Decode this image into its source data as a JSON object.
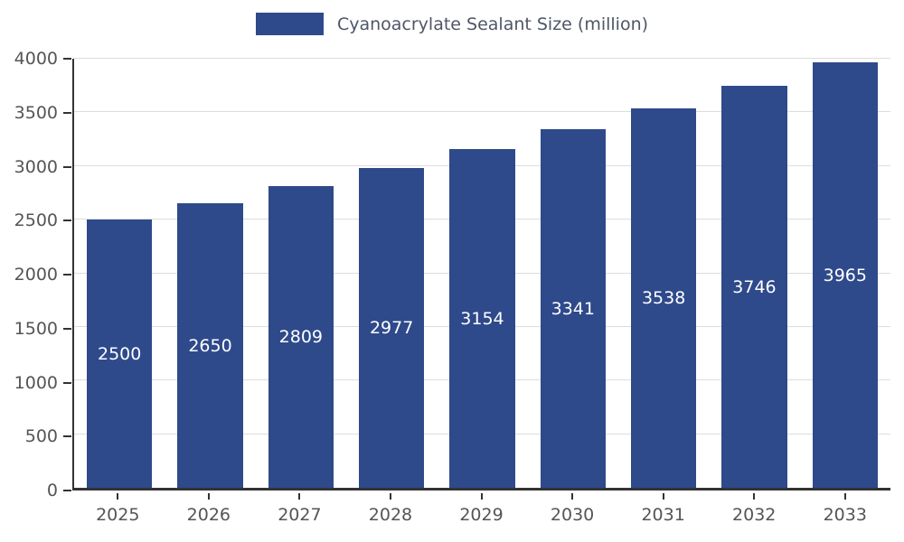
{
  "legend": {
    "label": "Cyanoacrylate Sealant Size (million)"
  },
  "colors": {
    "bar": "#2e4a8b",
    "grid": "#dddddd",
    "axis": "#333333",
    "tick_text": "#555555",
    "legend_text": "#4e5666",
    "value_label": "#ffffff"
  },
  "chart_data": {
    "type": "bar",
    "title": "Cyanoacrylate Sealant Size (million)",
    "categories": [
      "2025",
      "2026",
      "2027",
      "2028",
      "2029",
      "2030",
      "2031",
      "2032",
      "2033"
    ],
    "values": [
      2500,
      2650,
      2809,
      2977,
      3154,
      3341,
      3538,
      3746,
      3965
    ],
    "xlabel": "",
    "ylabel": "",
    "ylim": [
      0,
      4000
    ],
    "yticks": [
      0,
      500,
      1000,
      1500,
      2000,
      2500,
      3000,
      3500,
      4000
    ],
    "grid": true,
    "legend_position": "top",
    "value_labels": "inside-center"
  }
}
